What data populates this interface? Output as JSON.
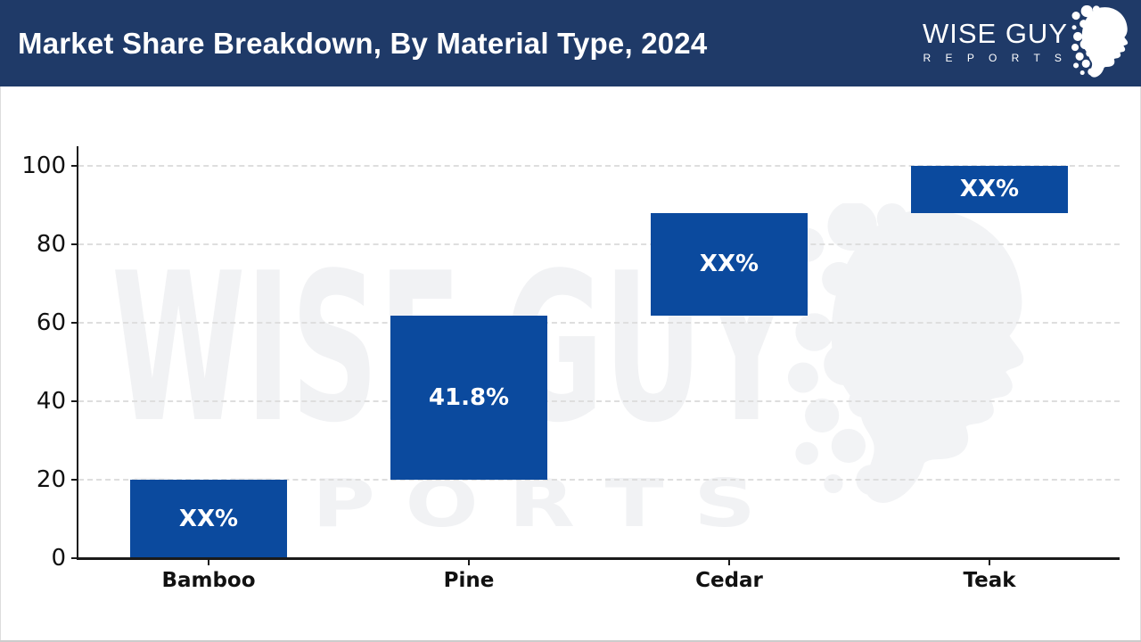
{
  "header": {
    "title": "Market Share Breakdown, By Material Type, 2024",
    "background_color": "#1F3A68",
    "logo": {
      "line1": "WISE GUY",
      "line2": "R E P O R T S"
    }
  },
  "watermark": {
    "line1": "WISE GUY",
    "line2": "R E P O R T S"
  },
  "chart_data": {
    "type": "bar",
    "subtype": "waterfall",
    "title": "Market Share Breakdown, By Material Type, 2024",
    "xlabel": "",
    "ylabel": "",
    "categories": [
      "Bamboo",
      "Pine",
      "Cedar",
      "Teak"
    ],
    "segments": [
      {
        "category": "Bamboo",
        "start": 0,
        "end": 20,
        "label": "XX%"
      },
      {
        "category": "Pine",
        "start": 20,
        "end": 61.8,
        "label": "41.8%"
      },
      {
        "category": "Cedar",
        "start": 61.8,
        "end": 88,
        "label": "XX%"
      },
      {
        "category": "Teak",
        "start": 88,
        "end": 100,
        "label": "XX%"
      }
    ],
    "yticks": [
      0,
      20,
      40,
      60,
      80,
      100
    ],
    "ylim": [
      0,
      105
    ],
    "grid": "horizontal-dashed",
    "legend": "none",
    "bar_color": "#0B4A9E",
    "bar_label_color": "#FFFFFF",
    "gridline_color": "#DEDEDE",
    "axis_color": "#1A1A1A"
  }
}
